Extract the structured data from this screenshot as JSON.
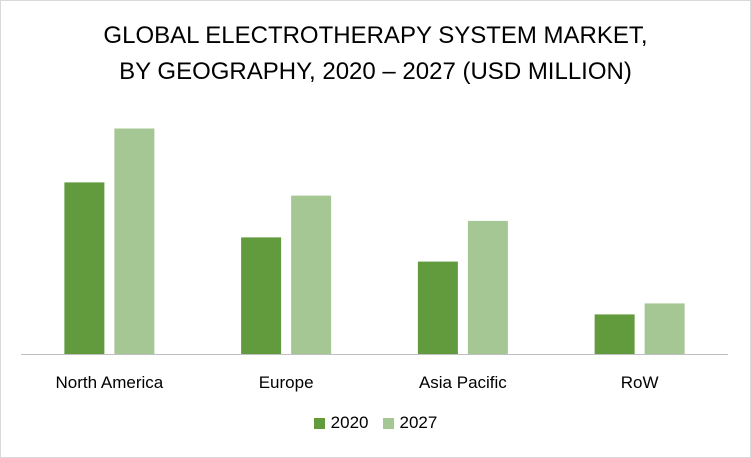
{
  "chart_data": {
    "type": "bar",
    "title_line1": "GLOBAL ELECTROTHERAPY SYSTEM MARKET,",
    "title_line2": "BY GEOGRAPHY, 2020 – 2027 (USD MILLION)",
    "categories": [
      "North America",
      "Europe",
      "Asia Pacific",
      "RoW"
    ],
    "series": [
      {
        "name": "2020",
        "color": "#629a3e",
        "values": [
          156,
          106,
          84,
          36
        ]
      },
      {
        "name": "2027",
        "color": "#a4c794",
        "values": [
          205,
          144,
          121,
          46
        ]
      }
    ],
    "ylim": [
      0,
      220
    ],
    "grid": false,
    "legend_position": "bottom",
    "xlabel": "",
    "ylabel": ""
  }
}
